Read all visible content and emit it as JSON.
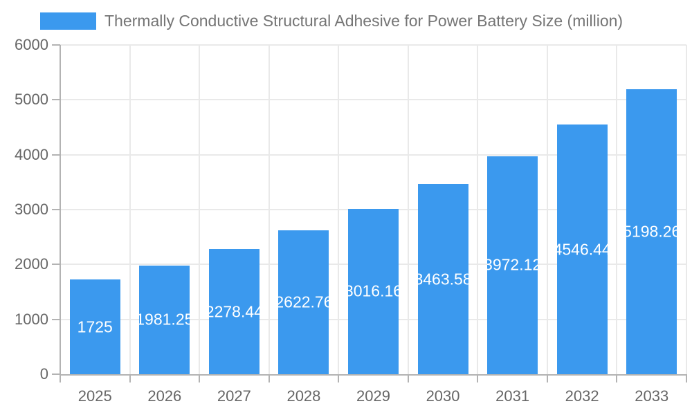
{
  "legend": {
    "label": "Thermally Conductive Structural Adhesive for Power Battery Size (million)"
  },
  "chart_data": {
    "type": "bar",
    "title": "Thermally Conductive Structural Adhesive for Power Battery Size (million)",
    "legend_position": "top",
    "grid": true,
    "categories": [
      "2025",
      "2026",
      "2027",
      "2028",
      "2029",
      "2030",
      "2031",
      "2032",
      "2033"
    ],
    "series": [
      {
        "name": "Thermally Conductive Structural Adhesive for Power Battery Size (million)",
        "values": [
          1725,
          1981.25,
          2278.44,
          2622.76,
          3016.16,
          3463.58,
          3972.12,
          4546.44,
          5198.26
        ],
        "value_labels": [
          "1725",
          "1981.25",
          "2278.44",
          "2622.76",
          "3016.16",
          "3463.58",
          "3972.12",
          "4546.44",
          "5198.26"
        ]
      }
    ],
    "xlabel": "",
    "ylabel": "",
    "ylim": [
      0,
      6000
    ],
    "yticks": [
      0,
      1000,
      2000,
      3000,
      4000,
      5000,
      6000
    ],
    "colors": {
      "bar": "#3B99EE",
      "value_label": "#FFFFFF",
      "axis_label": "#666666",
      "title": "#757575",
      "grid_line": "#E9E9E9",
      "axis_line": "#B3B3B3",
      "background": "#FFFFFF"
    }
  }
}
